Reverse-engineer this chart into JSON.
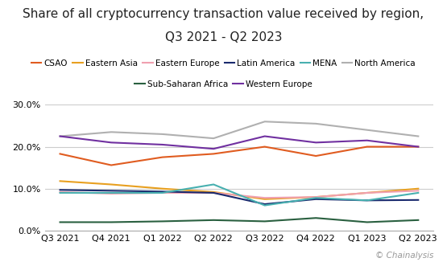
{
  "title_line1": "Share of all cryptocurrency transaction value received by region,",
  "title_line2": "Q3 2021 - Q2 2023",
  "x_labels": [
    "Q3 2021",
    "Q4 2021",
    "Q1 2022",
    "Q2 2022",
    "Q3 2022",
    "Q4 2022",
    "Q1 2023",
    "Q2 2023"
  ],
  "series": {
    "CSAO": [
      0.183,
      0.156,
      0.175,
      0.183,
      0.2,
      0.178,
      0.2,
      0.2
    ],
    "Eastern Asia": [
      0.118,
      0.11,
      0.1,
      0.092,
      0.075,
      0.08,
      0.09,
      0.1
    ],
    "Eastern Europe": [
      0.092,
      0.088,
      0.09,
      0.09,
      0.078,
      0.08,
      0.09,
      0.095
    ],
    "Latin America": [
      0.097,
      0.095,
      0.093,
      0.09,
      0.063,
      0.075,
      0.072,
      0.073
    ],
    "MENA": [
      0.09,
      0.09,
      0.09,
      0.11,
      0.06,
      0.078,
      0.072,
      0.09
    ],
    "North America": [
      0.225,
      0.235,
      0.23,
      0.22,
      0.26,
      0.255,
      0.24,
      0.225
    ],
    "Sub-Saharan Africa": [
      0.02,
      0.02,
      0.022,
      0.025,
      0.022,
      0.03,
      0.02,
      0.025
    ],
    "Western Europe": [
      0.225,
      0.21,
      0.205,
      0.195,
      0.225,
      0.21,
      0.215,
      0.2
    ]
  },
  "colors": {
    "CSAO": "#e05c20",
    "Eastern Asia": "#e8a020",
    "Eastern Europe": "#f0a0b0",
    "Latin America": "#1a2a6e",
    "MENA": "#48b0b0",
    "North America": "#b0b0b0",
    "Sub-Saharan Africa": "#2a6040",
    "Western Europe": "#7030a0"
  },
  "ylim": [
    0.0,
    0.3
  ],
  "yticks": [
    0.0,
    0.1,
    0.2,
    0.3
  ],
  "background_color": "#ffffff",
  "copyright_text": "© Chainalysis",
  "title_fontsize": 11,
  "legend_fontsize": 7.5,
  "tick_fontsize": 8
}
